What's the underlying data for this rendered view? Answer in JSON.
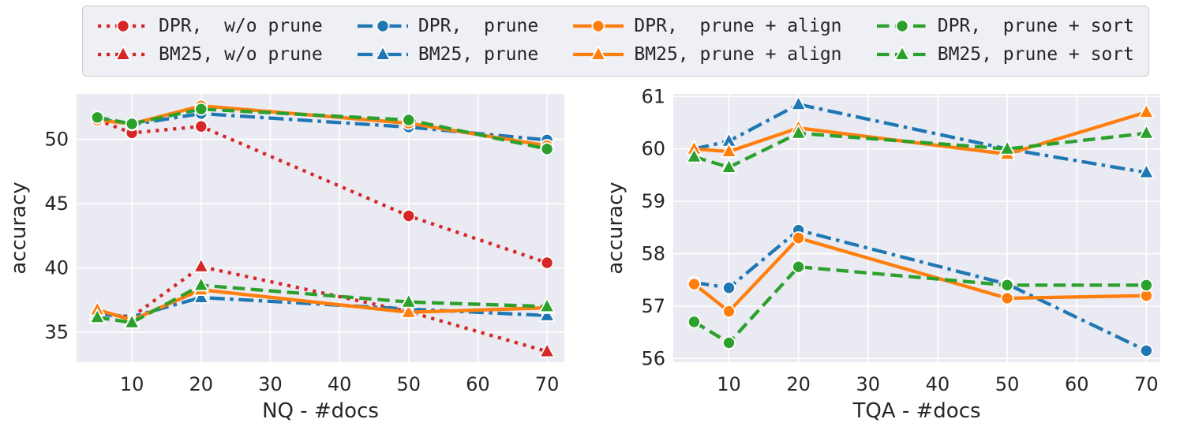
{
  "palette": {
    "red": "#d62728",
    "blue": "#1f77b4",
    "orange": "#ff7f0e",
    "green": "#2ca02c",
    "plot_bg": "#eaeaf2",
    "grid": "#ffffff",
    "text": "#262626",
    "legend_bg": "#eef0f5",
    "legend_border": "#cccccc"
  },
  "legend": {
    "rows": [
      [
        {
          "label": "DPR,  w/o prune",
          "color": "red",
          "dash": "dotted",
          "marker": "circle"
        },
        {
          "label": "DPR,  prune",
          "color": "blue",
          "dash": "dashdot",
          "marker": "circle"
        },
        {
          "label": "DPR,  prune + align",
          "color": "orange",
          "dash": "solid",
          "marker": "circle"
        },
        {
          "label": "DPR,  prune + sort",
          "color": "green",
          "dash": "dashed",
          "marker": "circle"
        }
      ],
      [
        {
          "label": "BM25, w/o prune",
          "color": "red",
          "dash": "dotted",
          "marker": "triangle"
        },
        {
          "label": "BM25, prune",
          "color": "blue",
          "dash": "dashdot",
          "marker": "triangle"
        },
        {
          "label": "BM25, prune + align",
          "color": "orange",
          "dash": "solid",
          "marker": "triangle"
        },
        {
          "label": "BM25, prune + sort",
          "color": "green",
          "dash": "dashed",
          "marker": "triangle"
        }
      ]
    ]
  },
  "chart_data": [
    {
      "type": "line",
      "title": "",
      "xlabel": "NQ - #docs",
      "ylabel": "accuracy",
      "x": [
        5,
        10,
        20,
        50,
        70
      ],
      "xticks": [
        10,
        20,
        30,
        40,
        50,
        60,
        70
      ],
      "yticks": [
        35,
        40,
        45,
        50
      ],
      "xlim": [
        2,
        72.5
      ],
      "ylim": [
        32.67,
        53.53
      ],
      "grid": true,
      "legend_position": "above-figure",
      "series": [
        {
          "name": "DPR, w/o prune",
          "color": "red",
          "dash": "dotted",
          "marker": "circle",
          "values": [
            51.5,
            50.5,
            51.0,
            44.05,
            40.4
          ]
        },
        {
          "name": "BM25, w/o prune",
          "color": "red",
          "dash": "dotted",
          "marker": "triangle",
          "values": [
            36.45,
            36.2,
            40.1,
            36.6,
            33.5
          ]
        },
        {
          "name": "DPR, prune",
          "color": "blue",
          "dash": "dashdot",
          "marker": "circle",
          "values": [
            51.6,
            51.15,
            52.0,
            50.95,
            49.95
          ]
        },
        {
          "name": "BM25, prune",
          "color": "blue",
          "dash": "dashdot",
          "marker": "triangle",
          "values": [
            36.4,
            36.2,
            37.7,
            36.8,
            36.3
          ]
        },
        {
          "name": "DPR, prune + align",
          "color": "orange",
          "dash": "solid",
          "marker": "circle",
          "values": [
            51.5,
            51.2,
            52.6,
            51.25,
            49.5
          ]
        },
        {
          "name": "BM25, prune + align",
          "color": "orange",
          "dash": "solid",
          "marker": "triangle",
          "values": [
            36.75,
            35.95,
            38.3,
            36.55,
            36.9
          ]
        },
        {
          "name": "DPR, prune + sort",
          "color": "green",
          "dash": "dashed",
          "marker": "circle",
          "values": [
            51.7,
            51.2,
            52.35,
            51.5,
            49.25
          ]
        },
        {
          "name": "BM25, prune + sort",
          "color": "green",
          "dash": "dashed",
          "marker": "triangle",
          "values": [
            36.15,
            35.75,
            38.65,
            37.35,
            37.0
          ]
        }
      ]
    },
    {
      "type": "line",
      "title": "",
      "xlabel": "TQA - #docs",
      "ylabel": "accuracy",
      "x": [
        5,
        10,
        20,
        50,
        70
      ],
      "xticks": [
        10,
        20,
        30,
        40,
        50,
        60,
        70
      ],
      "yticks": [
        56,
        57,
        58,
        59,
        60,
        61
      ],
      "xlim": [
        2,
        72
      ],
      "ylim": [
        55.93,
        61.05
      ],
      "grid": true,
      "legend_position": "above-figure",
      "series": [
        {
          "name": "DPR, prune",
          "color": "blue",
          "dash": "dashdot",
          "marker": "circle",
          "values": [
            57.45,
            57.35,
            58.45,
            57.42,
            56.15
          ]
        },
        {
          "name": "BM25, prune",
          "color": "blue",
          "dash": "dashdot",
          "marker": "triangle",
          "values": [
            60.0,
            60.15,
            60.85,
            60.0,
            59.55
          ]
        },
        {
          "name": "DPR, prune + align",
          "color": "orange",
          "dash": "solid",
          "marker": "circle",
          "values": [
            57.42,
            56.9,
            58.3,
            57.15,
            57.2
          ]
        },
        {
          "name": "BM25, prune + align",
          "color": "orange",
          "dash": "solid",
          "marker": "triangle",
          "values": [
            60.0,
            59.95,
            60.4,
            59.9,
            60.7
          ]
        },
        {
          "name": "DPR, prune + sort",
          "color": "green",
          "dash": "dashed",
          "marker": "circle",
          "values": [
            56.7,
            56.3,
            57.75,
            57.4,
            57.4
          ]
        },
        {
          "name": "BM25, prune + sort",
          "color": "green",
          "dash": "dashed",
          "marker": "triangle",
          "values": [
            59.85,
            59.65,
            60.3,
            60.0,
            60.3
          ]
        }
      ]
    }
  ]
}
